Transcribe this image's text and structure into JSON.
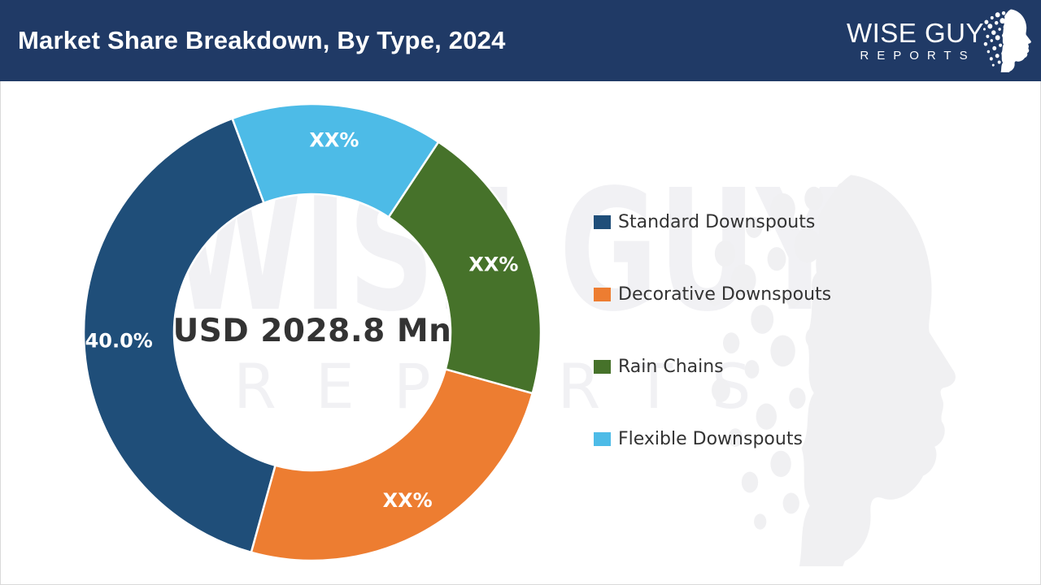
{
  "header": {
    "title": "Market Share Breakdown, By Type, 2024",
    "logo": {
      "line1": "WISE GUY",
      "line2": "REPORTS"
    }
  },
  "watermark": {
    "line1": "WISE GUY",
    "line2": "REPORTS"
  },
  "chart_data": {
    "type": "pie",
    "subtype": "donut",
    "title": "Market Share Breakdown, By Type, 2024",
    "center_label": "USD 2028.8 Mn",
    "start_angle": 110.5,
    "direction": "counterclockwise",
    "inner_radius_ratio": 0.6,
    "legend_position": "right",
    "slices": [
      {
        "name": "Standard Downspouts",
        "value": 40.0,
        "label": "40.0%",
        "color": "#1f4e79"
      },
      {
        "name": "Decorative Downspouts",
        "value": 25.0,
        "label": "XX%",
        "color": "#ed7d31"
      },
      {
        "name": "Rain Chains",
        "value": 20.0,
        "label": "XX%",
        "color": "#46722a"
      },
      {
        "name": "Flexible Downspouts",
        "value": 15.0,
        "label": "XX%",
        "color": "#4dbbe7"
      }
    ]
  },
  "colors": {
    "header_bg": "#203a66",
    "header_text": "#ffffff",
    "center_label_text": "#333333",
    "legend_text": "#333333",
    "watermark": "#f1f1f4",
    "content_border": "#d9d9d9",
    "slice_separator": "#ffffff"
  }
}
